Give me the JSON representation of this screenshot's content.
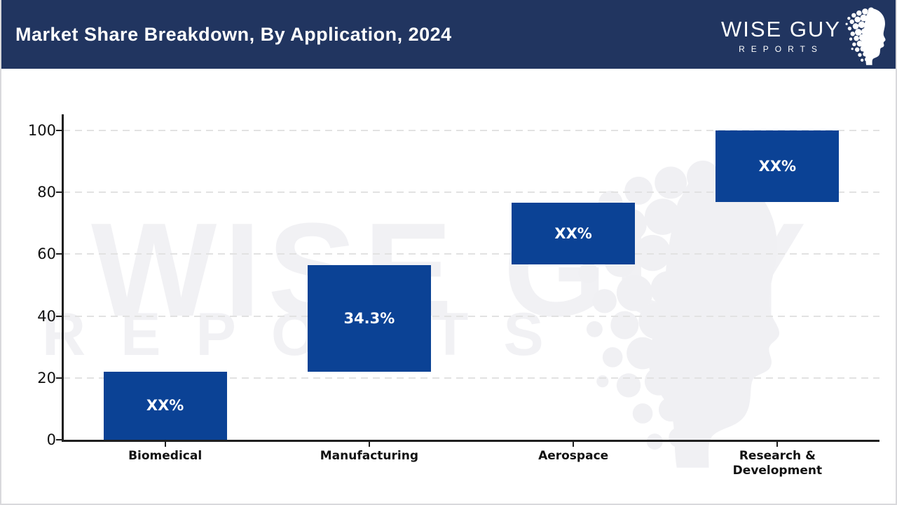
{
  "header": {
    "title": "Market Share Breakdown, By Application, 2024",
    "logo": {
      "line1": "WISE GUY",
      "line2": "REPORTS"
    }
  },
  "watermark": {
    "line1": "WISE GUY",
    "line2": "REPORTS"
  },
  "colors": {
    "header_bg": "#213560",
    "bar_blue": "#0b4295",
    "grid_gray": "#e2e2e2",
    "axis_black": "#1f1f1f",
    "watermark_gray": "#f1f1f4"
  },
  "chart_data": {
    "type": "bar",
    "subtype": "floating-segment-waterfall",
    "title": "Market Share Breakdown, By Application, 2024",
    "xlabel": "",
    "ylabel": "",
    "categories": [
      "Biomedical",
      "Manufacturing",
      "Aerospace",
      "Research & Development"
    ],
    "segments": [
      {
        "category": "Biomedical",
        "start": 0,
        "end": 22,
        "label": "XX%"
      },
      {
        "category": "Manufacturing",
        "start": 22.1,
        "end": 56.4,
        "label": "34.3%"
      },
      {
        "category": "Aerospace",
        "start": 56.6,
        "end": 76.6,
        "label": "XX%"
      },
      {
        "category": "Research & Development",
        "start": 76.8,
        "end": 100,
        "label": "XX%"
      }
    ],
    "yticks": [
      0,
      20,
      40,
      60,
      80,
      100
    ],
    "ylim": [
      0,
      105
    ],
    "grid": "horizontal dashed at yticks",
    "legend": "none",
    "bar_color": "#0b4295",
    "value_label_color": "#ffffff"
  }
}
